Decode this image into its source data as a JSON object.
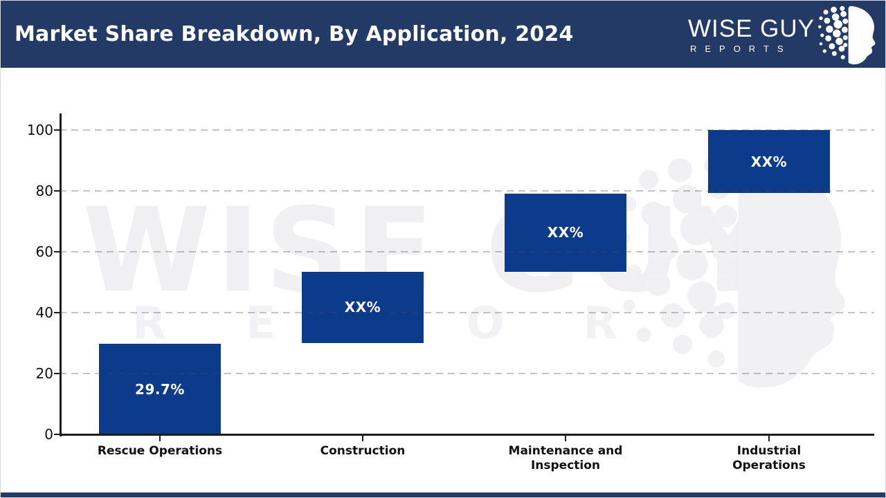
{
  "header": {
    "title": "Market Share Breakdown, By Application, 2024",
    "bg_color": "#233a67",
    "logo": {
      "line1": "WISE GUY",
      "line2": "REPORTS"
    }
  },
  "watermark": {
    "line1": "WISE GUY",
    "line2": "R E P O R T S"
  },
  "footer": {
    "bg_color": "#233a67"
  },
  "chart_data": {
    "type": "bar",
    "subtype": "waterfall",
    "title": "Market Share Breakdown, By Application, 2024",
    "xlabel": "",
    "ylabel": "",
    "ylim": [
      0,
      100
    ],
    "yticks": [
      0,
      20,
      40,
      60,
      80,
      100
    ],
    "grid": "horizontal-dashed",
    "legend": "none",
    "bar_color": "#0d3b8c",
    "bar_label_color": "#ffffff",
    "categories": [
      "Rescue Operations",
      "Construction",
      "Maintenance and Inspection",
      "Industrial Operations"
    ],
    "axis_labels": [
      "Rescue Operations",
      "Construction",
      "Maintenance and\nInspection",
      "Industrial\nOperations"
    ],
    "segments": [
      {
        "category": "Rescue Operations",
        "from": 0,
        "to": 29.7,
        "label": "29.7%"
      },
      {
        "category": "Construction",
        "from": 30.0,
        "to": 53.5,
        "label": "XX%"
      },
      {
        "category": "Maintenance and Inspection",
        "from": 53.5,
        "to": 79.0,
        "label": "XX%"
      },
      {
        "category": "Industrial Operations",
        "from": 79.3,
        "to": 100.0,
        "label": "XX%"
      }
    ]
  }
}
